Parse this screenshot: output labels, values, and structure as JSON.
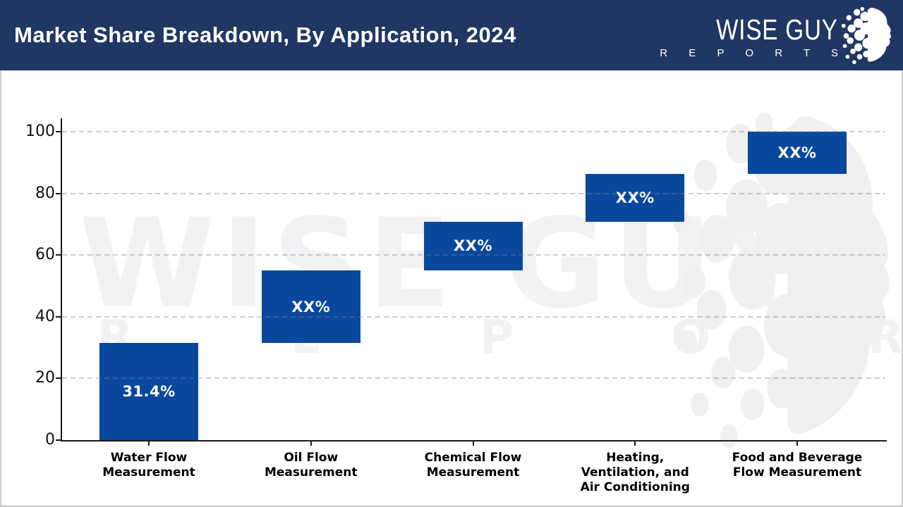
{
  "header": {
    "title": "Market Share Breakdown, By Application, 2024",
    "logo": {
      "line1": "WISE GUY",
      "line2": "R E P O R T S"
    }
  },
  "watermark": {
    "line1": "WISE GUY",
    "line2": "R E P O R T S"
  },
  "colors": {
    "header_bg": "#203764",
    "title_text": "#FFFFFF",
    "bar": "#0A489E",
    "bar_label": "#FFFFFF",
    "axis": "#1A1A1A",
    "grid": "#C9C9C9",
    "watermark": "#F2F2F5",
    "watermark_face": "#F0F0F3"
  },
  "chart_data": {
    "type": "bar",
    "subtype": "waterfall",
    "title": "Market Share Breakdown, By Application, 2024",
    "categories": [
      {
        "label": "Water Flow Measurement",
        "lines": [
          "Water Flow",
          "Measurement"
        ]
      },
      {
        "label": "Oil Flow Measurement",
        "lines": [
          "Oil Flow",
          "Measurement"
        ]
      },
      {
        "label": "Chemical Flow Measurement",
        "lines": [
          "Chemical Flow",
          "Measurement"
        ]
      },
      {
        "label": "Heating, Ventilation, and Air Conditioning",
        "lines": [
          "Heating,",
          "Ventilation, and",
          "Air Conditioning"
        ]
      },
      {
        "label": "Food and Beverage Flow Measurement",
        "lines": [
          "Food and Beverage",
          "Flow Measurement"
        ]
      }
    ],
    "series": [
      {
        "name": "Market Share (%)",
        "segments": [
          {
            "category": "Water Flow Measurement",
            "start": 0,
            "end": 31.4,
            "value_label": "31.4%"
          },
          {
            "category": "Oil Flow Measurement",
            "start": 31.4,
            "end": 55.0,
            "value_label": "XX%"
          },
          {
            "category": "Chemical Flow Measurement",
            "start": 55.0,
            "end": 70.8,
            "value_label": "XX%"
          },
          {
            "category": "Heating, Ventilation, and Air Conditioning",
            "start": 70.8,
            "end": 86.2,
            "value_label": "XX%"
          },
          {
            "category": "Food and Beverage Flow Measurement",
            "start": 86.2,
            "end": 100,
            "value_label": "XX%"
          }
        ]
      }
    ],
    "xlabel": "",
    "ylabel": "",
    "ylim": [
      0,
      100
    ],
    "yticks": [
      0,
      20,
      40,
      60,
      80,
      100
    ],
    "grid": "horizontal-dashed",
    "legend_position": "none"
  }
}
